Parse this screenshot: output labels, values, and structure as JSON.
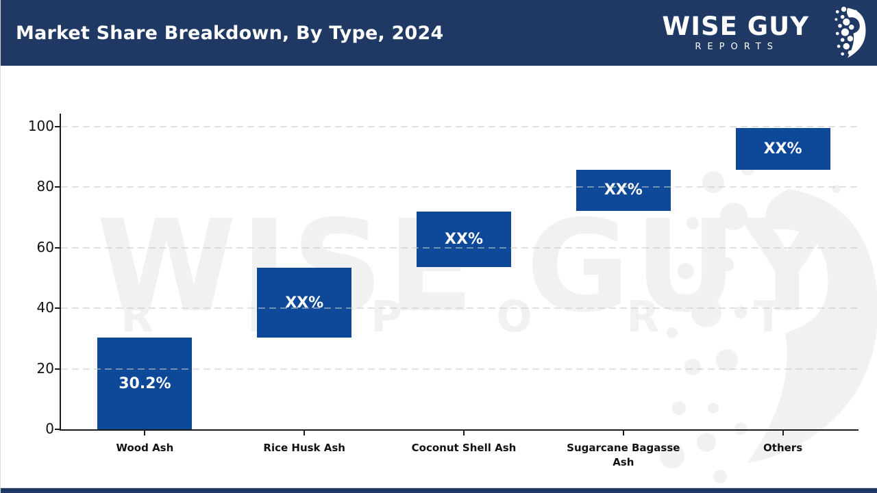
{
  "header": {
    "title": "Market Share Breakdown, By Type, 2024",
    "bg_color": "#1f3864",
    "logo": {
      "line1": "WISE GUY",
      "line2": "REPORTS"
    }
  },
  "watermark": {
    "line1": "WISE GUY",
    "line2": "REPORTS"
  },
  "chart_data": {
    "type": "bar",
    "subtype": "waterfall",
    "title": "Market Share Breakdown, By Type, 2024",
    "xlabel": "",
    "ylabel": "",
    "categories": [
      "Wood Ash",
      "Rice Husk Ash",
      "Coconut Shell Ash",
      "Sugarcane Bagasse Ash",
      "Others"
    ],
    "bars": [
      {
        "category": "Wood Ash",
        "start": 0,
        "end": 30.2,
        "label": "30.2%"
      },
      {
        "category": "Rice Husk Ash",
        "start": 30.2,
        "end": 53.4,
        "label": "XX%"
      },
      {
        "category": "Coconut Shell Ash",
        "start": 53.6,
        "end": 71.9,
        "label": "XX%"
      },
      {
        "category": "Sugarcane Bagasse Ash",
        "start": 72.1,
        "end": 85.7,
        "label": "XX%"
      },
      {
        "category": "Others",
        "start": 85.7,
        "end": 99.5,
        "label": "XX%"
      }
    ],
    "yticks": [
      0,
      20,
      40,
      60,
      80,
      100
    ],
    "ylim": [
      0,
      104
    ],
    "grid": "horizontal-dashed",
    "legend": "none",
    "bar_color": "#0d4899",
    "bar_label_color": "#ffffff"
  }
}
